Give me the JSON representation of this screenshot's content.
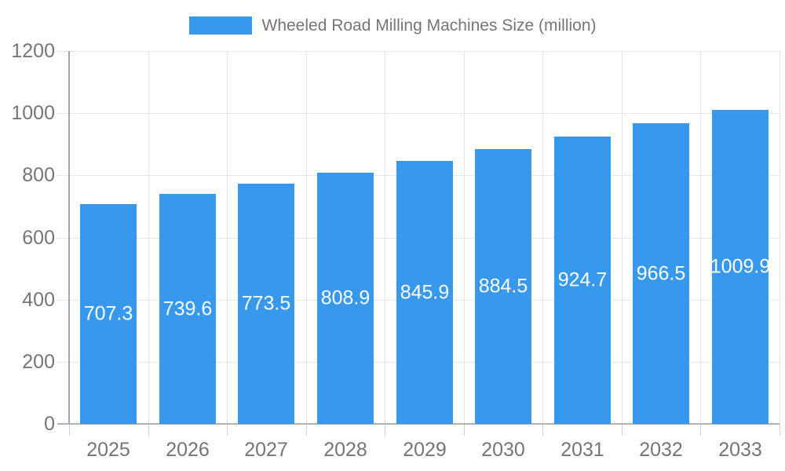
{
  "chart_data": {
    "type": "bar",
    "title": "Wheeled Road Milling Machines Size (million)",
    "categories": [
      "2025",
      "2026",
      "2027",
      "2028",
      "2029",
      "2030",
      "2031",
      "2032",
      "2033"
    ],
    "series": [
      {
        "name": "Wheeled Road Milling Machines Size (million)",
        "values": [
          707.3,
          739.6,
          773.5,
          808.9,
          845.9,
          884.5,
          924.7,
          966.5,
          1009.9
        ]
      }
    ],
    "xlabel": "",
    "ylabel": "",
    "ylim": [
      0,
      1200
    ],
    "yticks": [
      0,
      200,
      400,
      600,
      800,
      1000,
      1200
    ],
    "grid": true,
    "legend_position": "top-center",
    "value_label_position": "inside-center"
  },
  "colors": {
    "bar": "#3898ec",
    "bar_value_text": "#ffffff",
    "axis_text": "#757575",
    "legend_text": "#757575",
    "gridline": "#e6e6e6",
    "tick": "#d0d0d0",
    "y_axis_line": "#a6a6a6",
    "x_axis_line": "#b0b0b0",
    "background": "#ffffff"
  }
}
